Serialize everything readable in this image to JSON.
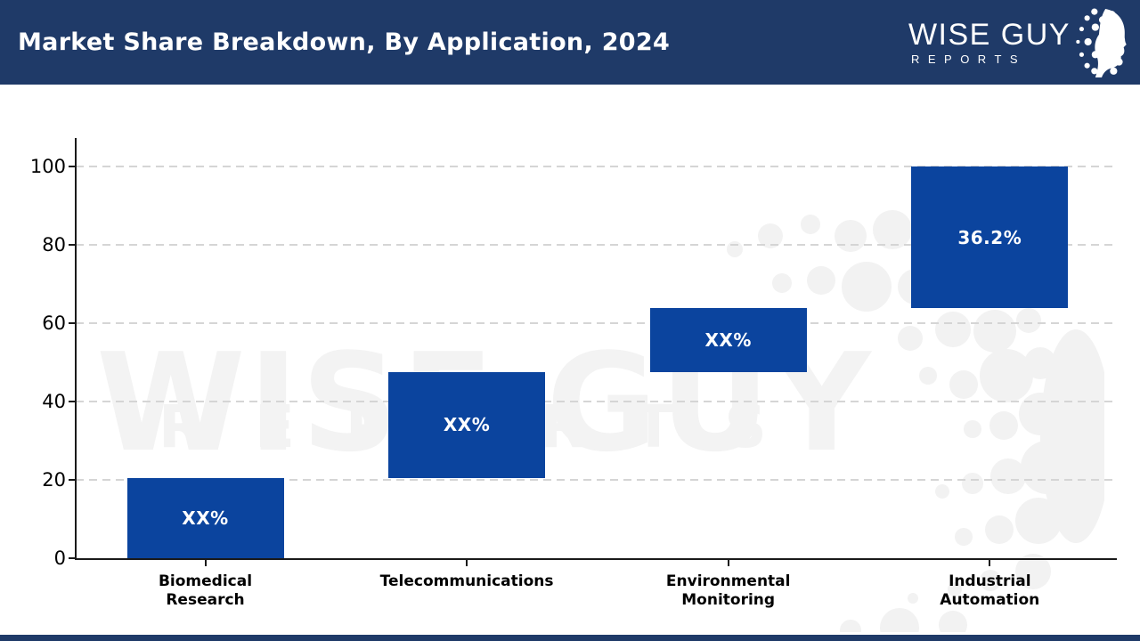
{
  "header": {
    "title": "Market Share Breakdown, By Application, 2024",
    "logo": {
      "line1": "WISE GUY",
      "line2": "REPORTS"
    },
    "bg_color": "#1f3a68"
  },
  "watermark": {
    "line1": "WISE GUY",
    "line2": "REPORTS"
  },
  "footer": {
    "bg_color": "#1f3a68"
  },
  "chart_data": {
    "type": "bar",
    "subtype": "waterfall",
    "title": "Market Share Breakdown, By Application, 2024",
    "xlabel": "",
    "ylabel": "",
    "ylim": [
      0,
      107
    ],
    "grid": "horizontal-dashed",
    "legend": "none",
    "bar_color": "#0b449e",
    "gridline_color": "#d5d5d5",
    "y_ticks": [
      0,
      20,
      40,
      60,
      80,
      100
    ],
    "categories": [
      {
        "label": "Biomedical Research",
        "label_lines": "Biomedical\nResearch"
      },
      {
        "label": "Telecommunications",
        "label_lines": "Telecommunications"
      },
      {
        "label": "Environmental Monitoring",
        "label_lines": "Environmental\nMonitoring"
      },
      {
        "label": "Industrial Automation",
        "label_lines": "Industrial\nAutomation"
      }
    ],
    "bars": [
      {
        "category": "Biomedical Research",
        "value_label": "XX%",
        "start": 0,
        "end": 20.5
      },
      {
        "category": "Telecommunications",
        "value_label": "XX%",
        "start": 20.5,
        "end": 47.5
      },
      {
        "category": "Environmental Monitoring",
        "value_label": "XX%",
        "start": 47.5,
        "end": 63.8
      },
      {
        "category": "Industrial Automation",
        "value_label": "36.2%",
        "start": 63.8,
        "end": 100
      }
    ]
  }
}
